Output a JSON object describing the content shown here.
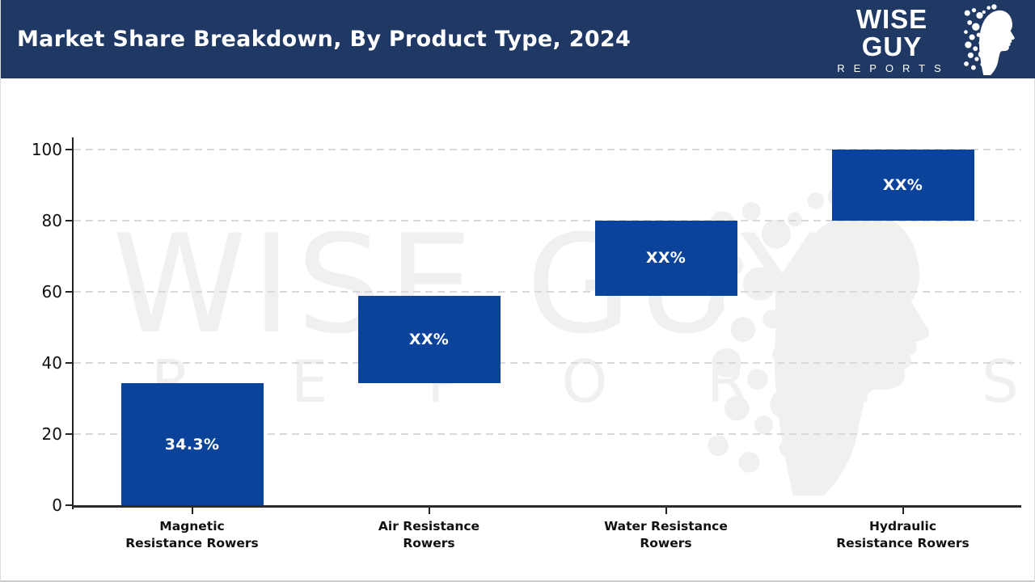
{
  "header": {
    "title": "Market Share Breakdown, By Product Type, 2024",
    "logo": {
      "line1": "WISE GUY",
      "line2": "REPORTS"
    }
  },
  "watermark": {
    "line1": "WISE GUY",
    "line2": "REPORTS"
  },
  "chart_data": {
    "type": "bar",
    "subtype": "waterfall",
    "title": "Market Share Breakdown, By Product Type, 2024",
    "categories": [
      [
        "Magnetic",
        "Resistance Rowers"
      ],
      [
        "Air Resistance",
        "Rowers"
      ],
      [
        "Water Resistance",
        "Rowers"
      ],
      [
        "Hydraulic",
        "Resistance Rowers"
      ]
    ],
    "segments": [
      {
        "start": 0,
        "end": 34.3,
        "label": "34.3%"
      },
      {
        "start": 34.3,
        "end": 58.9,
        "label": "XX%"
      },
      {
        "start": 58.9,
        "end": 80.0,
        "label": "XX%"
      },
      {
        "start": 80.0,
        "end": 100.0,
        "label": "XX%"
      }
    ],
    "segment_values_estimated": [
      34.3,
      24.6,
      21.1,
      20.0
    ],
    "xlabel": "",
    "ylabel": "",
    "ylim": [
      0,
      105
    ],
    "yticks": [
      0,
      20,
      40,
      60,
      80,
      100
    ],
    "grid": "horizontal-dashed",
    "legend": "none",
    "colors": {
      "bar": "#0A4399",
      "bar_label": "#FFFFFF",
      "header_bg": "#1F3864",
      "watermark": "#F0F0F3",
      "axis": "#222222",
      "gridline": "#D9D9DC"
    }
  }
}
